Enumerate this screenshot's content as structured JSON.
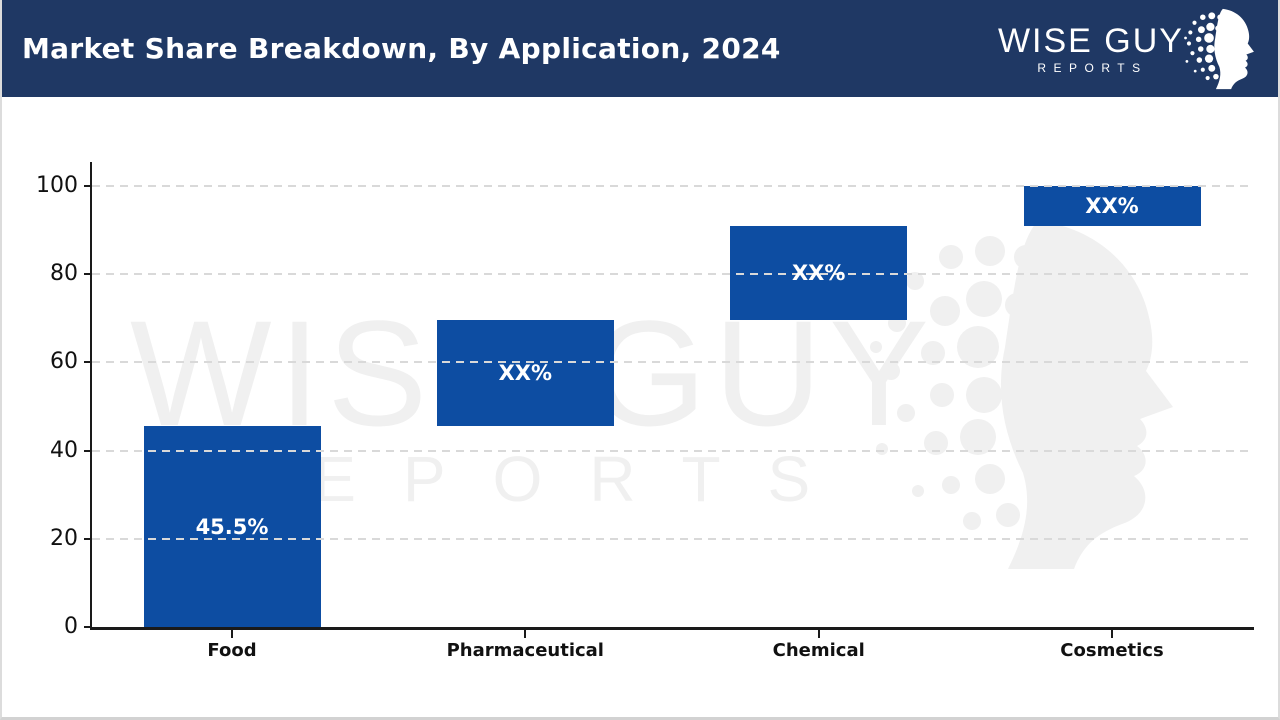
{
  "header": {
    "title": "Market Share Breakdown, By Application, 2024",
    "bg_color": "#1f3864",
    "logo": {
      "name": "WISE GUY",
      "subtitle": "REPORTS"
    }
  },
  "watermark": {
    "line1": "WISE GUY",
    "line2": "REPORTS"
  },
  "colors": {
    "header_navy": "#1f3864",
    "bar_blue": "#0d4da2",
    "bar_label_white": "#ffffff",
    "grid_gray": "#d9d9d9",
    "axis_black": "#1a1a1a",
    "watermark_gray": "#f0f0f0",
    "page_border_gray": "#d2d2d2"
  },
  "chart_data": {
    "type": "bar",
    "subtype": "waterfall-floating-bars",
    "title": "Market Share Breakdown, By Application, 2024",
    "categories": [
      "Food",
      "Pharmaceutical",
      "Chemical",
      "Cosmetics"
    ],
    "bars": [
      {
        "category": "Food",
        "start": 0,
        "end": 45.5,
        "label": "45.5%"
      },
      {
        "category": "Pharmaceutical",
        "start": 45.5,
        "end": 69.7,
        "label": "XX%"
      },
      {
        "category": "Chemical",
        "start": 69.7,
        "end": 91.0,
        "label": "XX%"
      },
      {
        "category": "Cosmetics",
        "start": 91.0,
        "end": 100.0,
        "label": "XX%"
      }
    ],
    "xlabel": "",
    "ylabel": "",
    "yticks": [
      0,
      20,
      40,
      60,
      80,
      100
    ],
    "ylim": [
      0,
      105.5
    ],
    "grid": "horizontal-dashed",
    "legend": "none",
    "bar_color": "#0d4da2",
    "bar_label_color": "#ffffff"
  }
}
